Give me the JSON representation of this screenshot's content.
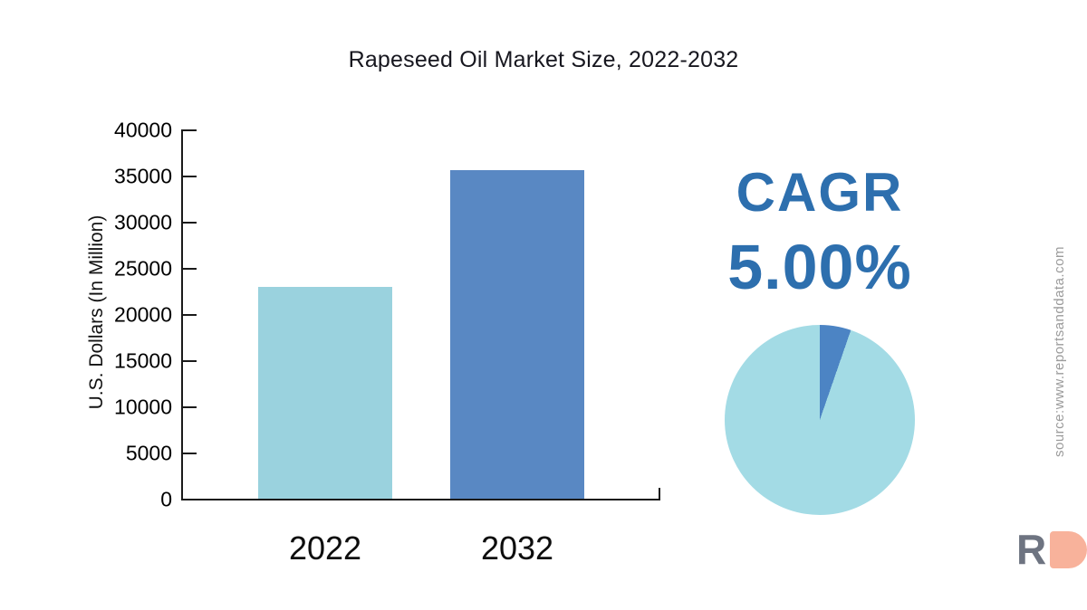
{
  "title": "Rapeseed Oil Market Size, 2022-2032",
  "cagr": {
    "label": "CAGR",
    "value": "5.00%"
  },
  "source": "source:www.reportsanddata.com",
  "logo": {
    "letter_r": "R",
    "d_shape": "rounded-salmon-d"
  },
  "colors": {
    "bar_2022": "#9ad2de",
    "bar_2032": "#5988c3",
    "pie_light": "#a3dbe5",
    "pie_slice": "#4c84c4",
    "cagr_text": "#2d6fae",
    "axis": "#1a1a1a",
    "source_text": "#9b9b9b",
    "logo_gray": "#6e7481",
    "logo_salmon": "#f8b29b"
  },
  "chart_data": [
    {
      "type": "bar",
      "title": "Rapeseed Oil Market Size, 2022-2032",
      "categories": [
        "2022",
        "2032"
      ],
      "values": [
        23000,
        35600
      ],
      "xlabel": "",
      "ylabel": "U.S. Dollars (In Million)",
      "ylim": [
        0,
        40000
      ],
      "ytick_step": 5000,
      "yticks": [
        0,
        5000,
        10000,
        15000,
        20000,
        25000,
        30000,
        35000,
        40000
      ],
      "grid": false,
      "legend": "none",
      "bar_colors": [
        "#9ad2de",
        "#5988c3"
      ]
    },
    {
      "type": "pie",
      "annotation": "CAGR 5.00%",
      "start_angle_deg": 0,
      "direction": "clockwise",
      "slices": [
        {
          "label": "cagr-highlight",
          "value_percent": 5.3,
          "color": "#4c84c4"
        },
        {
          "label": "remainder",
          "value_percent": 94.7,
          "color": "#a3dbe5"
        }
      ]
    }
  ]
}
